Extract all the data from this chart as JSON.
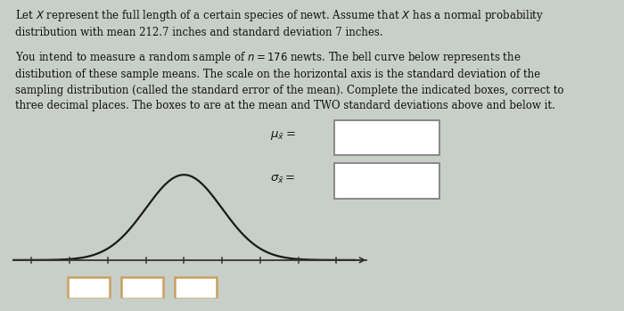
{
  "mean": 212.7,
  "std": 7,
  "n": 176,
  "background_color": "#c8cfc8",
  "curve_color": "#1a1a1a",
  "axis_color": "#333333",
  "box_border_orange": "#c8a060",
  "box_border_gray": "#888888",
  "box_face": "#ffffff",
  "text_color": "#111111",
  "line1": "Let $X$ represent the full length of a certain species of newt. Assume that $X$ has a normal probability",
  "line2": "distribution with mean 212.7 inches and standard deviation 7 inches.",
  "line3": "You intend to measure a random sample of $n = 176$ newts. The bell curve below represents the",
  "line4": "distibution of these sample means. The scale on the horizontal axis is the standard deviation of the",
  "line5": "sampling distribution (called the standard error of the mean). Complete the indicated boxes, correct to",
  "line6": "three decimal places. The boxes to are at the mean and TWO standard deviations above and below it.",
  "mu_label": "$\\mu_{\\bar{x}} =$",
  "sigma_label": "$\\sigma_{\\bar{x}} =$"
}
